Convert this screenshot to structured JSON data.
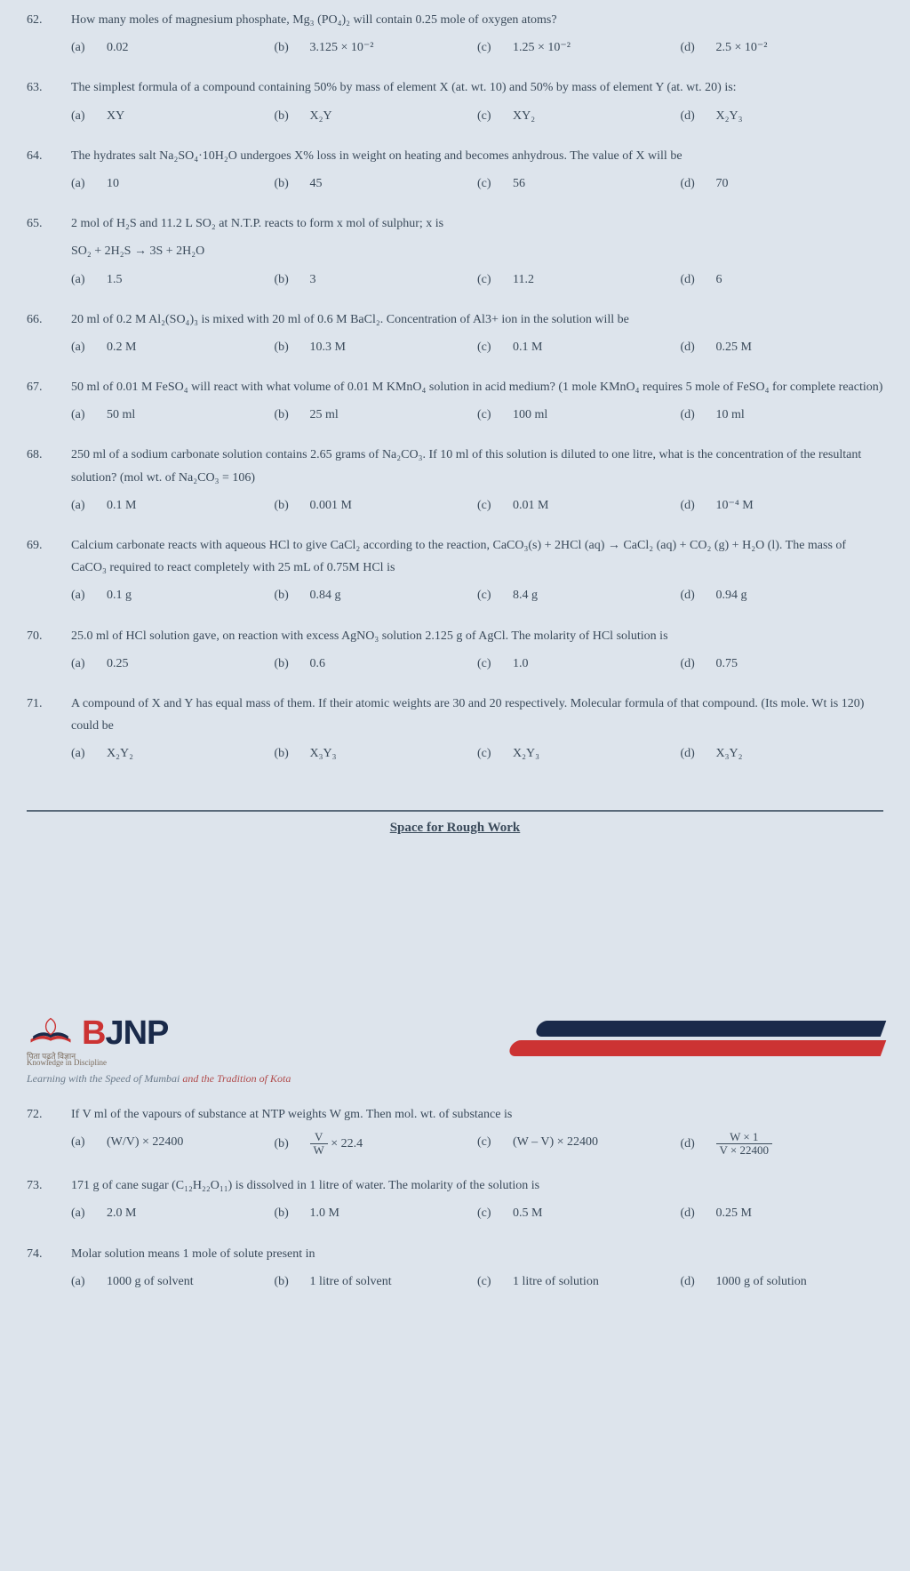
{
  "questions": [
    {
      "num": "62.",
      "text": "How many moles of magnesium phosphate, Mg₃ (PO₄)₂ will contain 0.25 mole of oxygen atoms?",
      "opts": [
        {
          "l": "(a)",
          "v": "0.02"
        },
        {
          "l": "(b)",
          "v": "3.125 × 10⁻²"
        },
        {
          "l": "(c)",
          "v": "1.25 × 10⁻²"
        },
        {
          "l": "(d)",
          "v": "2.5 × 10⁻²"
        }
      ]
    },
    {
      "num": "63.",
      "text": "The simplest formula of a compound containing 50% by mass of element X (at. wt. 10) and 50% by mass of element Y (at. wt. 20) is:",
      "opts": [
        {
          "l": "(a)",
          "v": "XY"
        },
        {
          "l": "(b)",
          "v": "X₂Y"
        },
        {
          "l": "(c)",
          "v": "XY₂"
        },
        {
          "l": "(d)",
          "v": "X₂Y₃"
        }
      ]
    },
    {
      "num": "64.",
      "text": "The hydrates salt Na₂SO₄·10H₂O undergoes X% loss in weight on heating and becomes anhydrous. The value of X will be",
      "opts": [
        {
          "l": "(a)",
          "v": "10"
        },
        {
          "l": "(b)",
          "v": "45"
        },
        {
          "l": "(c)",
          "v": "56"
        },
        {
          "l": "(d)",
          "v": "70"
        }
      ]
    },
    {
      "num": "65.",
      "text": "2 mol of H₂S and 11.2 L SO₂ at N.T.P. reacts to form x mol of sulphur; x is",
      "text2": "SO₂ + 2H₂S → 3S + 2H₂O",
      "opts": [
        {
          "l": "(a)",
          "v": "1.5"
        },
        {
          "l": "(b)",
          "v": "3"
        },
        {
          "l": "(c)",
          "v": "11.2"
        },
        {
          "l": "(d)",
          "v": "6"
        }
      ]
    },
    {
      "num": "66.",
      "text": "20 ml of 0.2 M Al₂(SO₄)₃ is mixed with 20 ml of 0.6 M BaCl₂. Concentration of Al3+ ion in the solution will be",
      "opts": [
        {
          "l": "(a)",
          "v": "0.2 M"
        },
        {
          "l": "(b)",
          "v": "10.3 M"
        },
        {
          "l": "(c)",
          "v": "0.1 M"
        },
        {
          "l": "(d)",
          "v": "0.25 M"
        }
      ]
    },
    {
      "num": "67.",
      "text": "50 ml of 0.01 M FeSO₄ will react with what volume of 0.01 M KMnO₄ solution in acid medium? (1 mole KMnO₄ requires 5 mole of FeSO₄ for complete reaction)",
      "opts": [
        {
          "l": "(a)",
          "v": "50 ml"
        },
        {
          "l": "(b)",
          "v": "25 ml"
        },
        {
          "l": "(c)",
          "v": "100 ml"
        },
        {
          "l": "(d)",
          "v": "10 ml"
        }
      ]
    },
    {
      "num": "68.",
      "text": "250 ml of a sodium carbonate solution contains 2.65 grams of Na₂CO₃. If 10 ml of this solution is diluted to one litre, what is the concentration of the resultant solution? (mol wt. of Na₂CO₃ = 106)",
      "opts": [
        {
          "l": "(a)",
          "v": "0.1 M"
        },
        {
          "l": "(b)",
          "v": "0.001 M"
        },
        {
          "l": "(c)",
          "v": "0.01 M"
        },
        {
          "l": "(d)",
          "v": "10⁻⁴ M"
        }
      ]
    },
    {
      "num": "69.",
      "text": "Calcium carbonate reacts with aqueous HCl to give CaCl₂ according to the reaction, CaCO₃(s) + 2HCl (aq) → CaCl₂ (aq) + CO₂ (g) + H₂O (l). The mass of CaCO₃ required to react completely with 25 mL of 0.75M HCl is",
      "opts": [
        {
          "l": "(a)",
          "v": "0.1 g"
        },
        {
          "l": "(b)",
          "v": "0.84 g"
        },
        {
          "l": "(c)",
          "v": "8.4 g"
        },
        {
          "l": "(d)",
          "v": "0.94 g"
        }
      ]
    },
    {
      "num": "70.",
      "text": "25.0 ml of HCl solution gave, on reaction with excess AgNO₃ solution 2.125 g of AgCl. The molarity of HCl solution is",
      "opts": [
        {
          "l": "(a)",
          "v": "0.25"
        },
        {
          "l": "(b)",
          "v": "0.6"
        },
        {
          "l": "(c)",
          "v": "1.0"
        },
        {
          "l": "(d)",
          "v": "0.75"
        }
      ]
    },
    {
      "num": "71.",
      "text": "A compound of X and Y has equal mass of them. If their atomic weights are 30 and 20 respectively. Molecular formula of that compound. (Its mole. Wt is 120) could be",
      "opts": [
        {
          "l": "(a)",
          "v": "X₂Y₂"
        },
        {
          "l": "(b)",
          "v": "X₃Y₃"
        },
        {
          "l": "(c)",
          "v": "X₂Y₃"
        },
        {
          "l": "(d)",
          "v": "X₃Y₂"
        }
      ]
    }
  ],
  "rough": "Space for Rough Work",
  "logo": {
    "b": "B",
    "jnp": "JNP",
    "small1": "पिता पढ़ते विज्ञान",
    "small2": "Knowledge in Discipline"
  },
  "tagline": {
    "p1": "Learning with the Speed of Mumbai ",
    "p2": "and the Tradition of Kota"
  },
  "questions2": [
    {
      "num": "72.",
      "text": "If V ml of the vapours of substance at NTP weights W gm. Then mol. wt. of substance is",
      "opts": [
        {
          "l": "(a)",
          "v": "(W/V) × 22400"
        },
        {
          "l": "(b)",
          "html": "frac1"
        },
        {
          "l": "(c)",
          "v": "(W – V) × 22400"
        },
        {
          "l": "(d)",
          "html": "frac2"
        }
      ]
    },
    {
      "num": "73.",
      "text": "171 g of cane sugar (C₁₂H₂₂O₁₁) is dissolved in 1 litre of water. The molarity of the solution is",
      "opts": [
        {
          "l": "(a)",
          "v": "2.0 M"
        },
        {
          "l": "(b)",
          "v": "1.0 M"
        },
        {
          "l": "(c)",
          "v": "0.5 M"
        },
        {
          "l": "(d)",
          "v": "0.25 M"
        }
      ]
    },
    {
      "num": "74.",
      "text": "Molar solution means 1 mole of solute present in",
      "opts": [
        {
          "l": "(a)",
          "v": "1000 g of solvent"
        },
        {
          "l": "(b)",
          "v": "1 litre of solvent"
        },
        {
          "l": "(c)",
          "v": "1 litre of solution"
        },
        {
          "l": "(d)",
          "v": "1000 g of solution"
        }
      ]
    }
  ],
  "fracs": {
    "frac1": {
      "num": "V",
      "den": "W",
      "after": " × 22.4"
    },
    "frac2": {
      "num": "W × 1",
      "den": "V × 22400",
      "after": ""
    }
  },
  "colors": {
    "bg": "#dde4ec",
    "text": "#3a4a5a",
    "red": "#c33",
    "navy": "#1a2a4a"
  }
}
